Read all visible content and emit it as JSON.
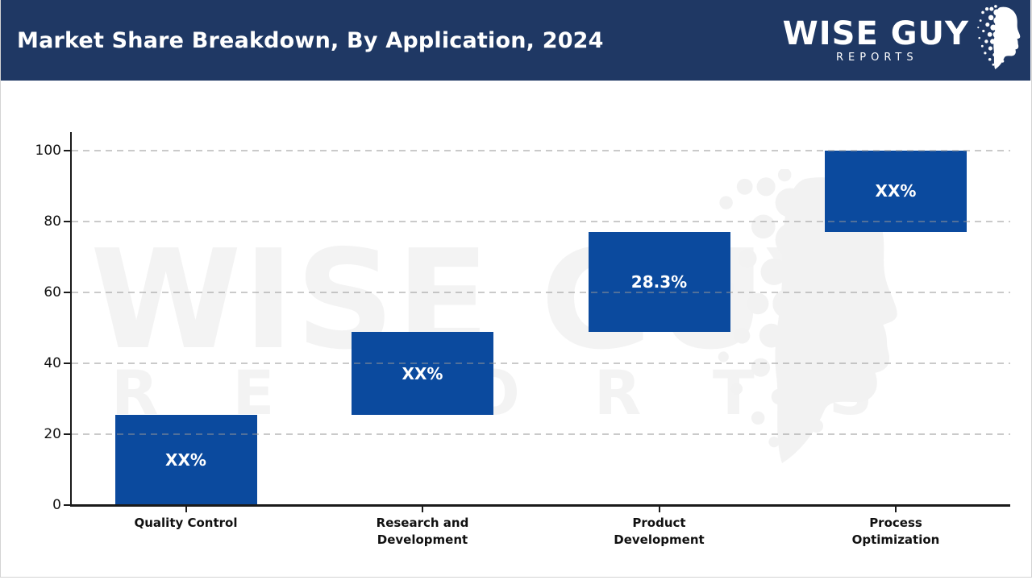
{
  "header": {
    "title": "Market Share Breakdown, By Application, 2024",
    "background_color": "#1f3864",
    "logo": {
      "wordmark": "WISE GUY",
      "sub": "REPORTS",
      "face_icon": "wiseguy-dotted-face"
    }
  },
  "watermark": {
    "wordmark": "WISE GUY",
    "sub": "REPORTS",
    "color": "#f3f3f3"
  },
  "chart_data": {
    "type": "bar",
    "subtype": "floating-waterfall",
    "title": "Market Share Breakdown, By Application, 2024",
    "categories": [
      "Quality Control",
      "Research and Development",
      "Product Development",
      "Process Optimization"
    ],
    "category_display_lines": [
      [
        "Quality Control"
      ],
      [
        "Research and",
        "Development"
      ],
      [
        "Product",
        "Development"
      ],
      [
        "Process",
        "Optimization"
      ]
    ],
    "segments": [
      {
        "category": "Quality Control",
        "start": 0,
        "end": 25.5,
        "value_label": "XX%"
      },
      {
        "category": "Research and Development",
        "start": 25.5,
        "end": 48.7,
        "value_label": "XX%"
      },
      {
        "category": "Product Development",
        "start": 48.7,
        "end": 77.0,
        "value_label": "28.3%"
      },
      {
        "category": "Process Optimization",
        "start": 77.0,
        "end": 100,
        "value_label": "XX%"
      }
    ],
    "xlabel": "",
    "ylabel": "",
    "ylim": [
      0,
      105
    ],
    "yticks": [
      0,
      20,
      40,
      60,
      80,
      100
    ],
    "grid": true,
    "grid_style": "dashed",
    "legend": false,
    "colors": {
      "bar": "#0b4a9e",
      "axis": "#1a1a1a",
      "grid": "#bdbdbd",
      "bar_label_text": "#ffffff",
      "tick_text": "#111111"
    }
  }
}
